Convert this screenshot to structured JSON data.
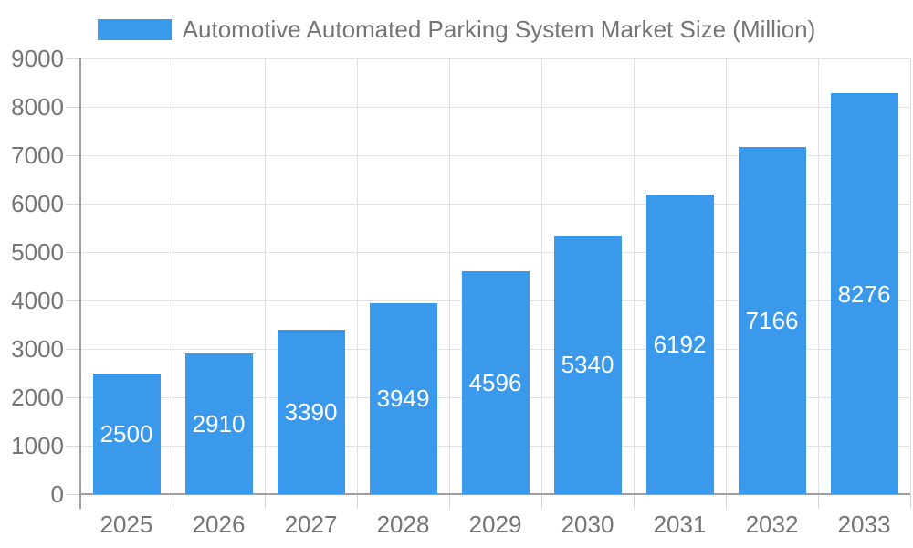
{
  "chart_data": {
    "type": "bar",
    "title": "Automotive Automated Parking System Market Size (Million)",
    "legend": {
      "position": "top",
      "label": "Automotive Automated Parking System Market Size (Million)"
    },
    "categories": [
      "2025",
      "2026",
      "2027",
      "2028",
      "2029",
      "2030",
      "2031",
      "2032",
      "2033"
    ],
    "series": [
      {
        "name": "Automotive Automated Parking System Market Size (Million)",
        "values": [
          2500,
          2910,
          3390,
          3949,
          4596,
          5340,
          6192,
          7166,
          8276
        ]
      }
    ],
    "bar_value_labels": [
      "2500",
      "2910",
      "3390",
      "3949",
      "4596",
      "5340",
      "6192",
      "7166",
      "8276"
    ],
    "xlabel": "",
    "ylabel": "",
    "ylim": [
      0,
      9000
    ],
    "y_tick_step": 1000,
    "y_tick_labels": [
      "0",
      "1000",
      "2000",
      "3000",
      "4000",
      "5000",
      "6000",
      "7000",
      "8000",
      "9000"
    ],
    "grid": {
      "horizontal": true,
      "vertical": true
    },
    "colors": {
      "bar": "#3B99EC",
      "bar_label": "#FFFFFF",
      "axis_text": "#757575",
      "title_text": "#757575",
      "axis_line": "#9E9E9E",
      "grid_line": "#E2E2E2",
      "tick_line": "#D6D6D6",
      "background": "#FFFFFF"
    }
  }
}
